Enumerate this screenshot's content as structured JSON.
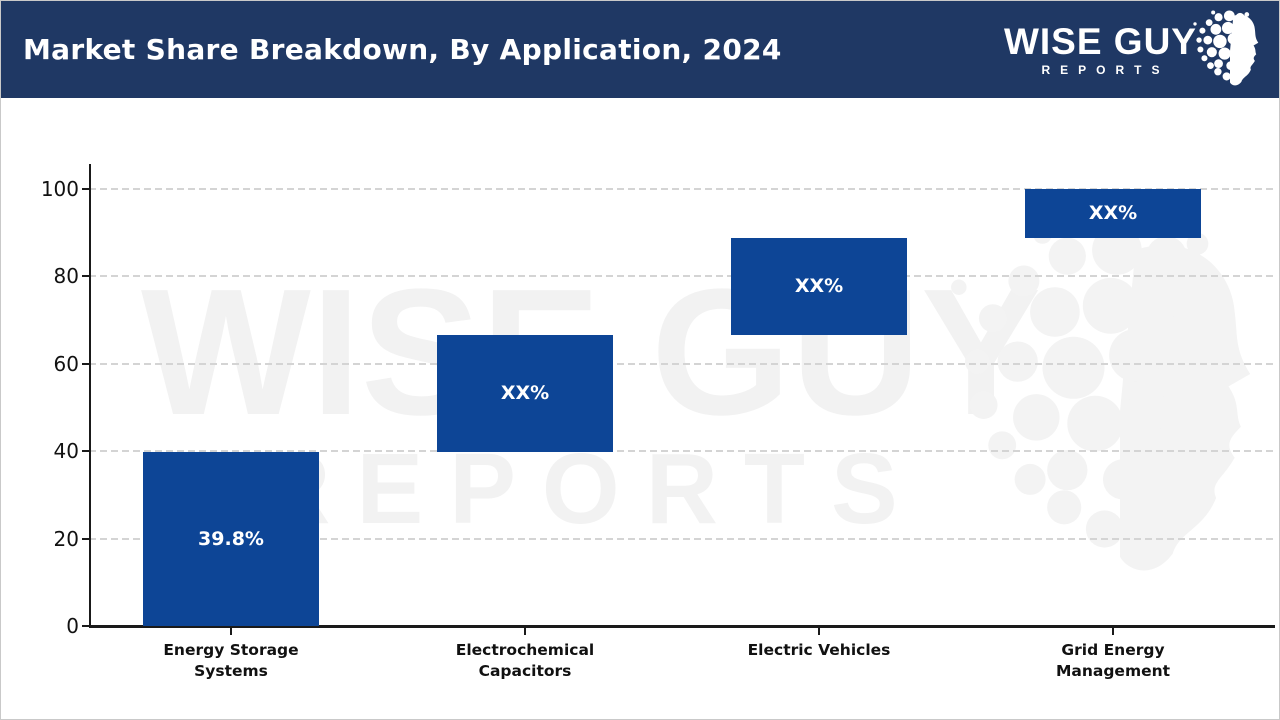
{
  "header": {
    "title": "Market Share Breakdown, By Application, 2024",
    "logo": {
      "name": "WISE GUY",
      "subtitle": "REPORTS"
    }
  },
  "watermark": {
    "line1": "WISE GUY",
    "line2": "REPORTS"
  },
  "colors": {
    "header_bg": "#1f3864",
    "bar": "#0d4596",
    "grid": "#d4d4d4",
    "axis": "#1a1a1a",
    "bar_label": "#ffffff",
    "watermark": "#f2f2f2"
  },
  "chart_data": {
    "type": "bar",
    "subtype": "waterfall",
    "title": "Market Share Breakdown, By Application, 2024",
    "categories": [
      "Energy Storage Systems",
      "Electrochemical Capacitors",
      "Electric Vehicles",
      "Grid Energy Management"
    ],
    "series": [
      {
        "name": "Market share (%)",
        "segments": [
          {
            "category": "Energy Storage Systems",
            "start": 0,
            "end": 39.8,
            "value": 39.8,
            "label": "39.8%"
          },
          {
            "category": "Electrochemical Capacitors",
            "start": 39.8,
            "end": 66.6,
            "value": 26.8,
            "label": "XX%"
          },
          {
            "category": "Electric Vehicles",
            "start": 66.6,
            "end": 88.7,
            "value": 22.1,
            "label": "XX%"
          },
          {
            "category": "Grid Energy Management",
            "start": 88.7,
            "end": 100,
            "value": 11.3,
            "label": "XX%"
          }
        ]
      }
    ],
    "ylim": [
      0,
      100
    ],
    "yticks": [
      0,
      20,
      40,
      60,
      80,
      100
    ],
    "grid": "horizontal-dashed",
    "legend": "none"
  }
}
